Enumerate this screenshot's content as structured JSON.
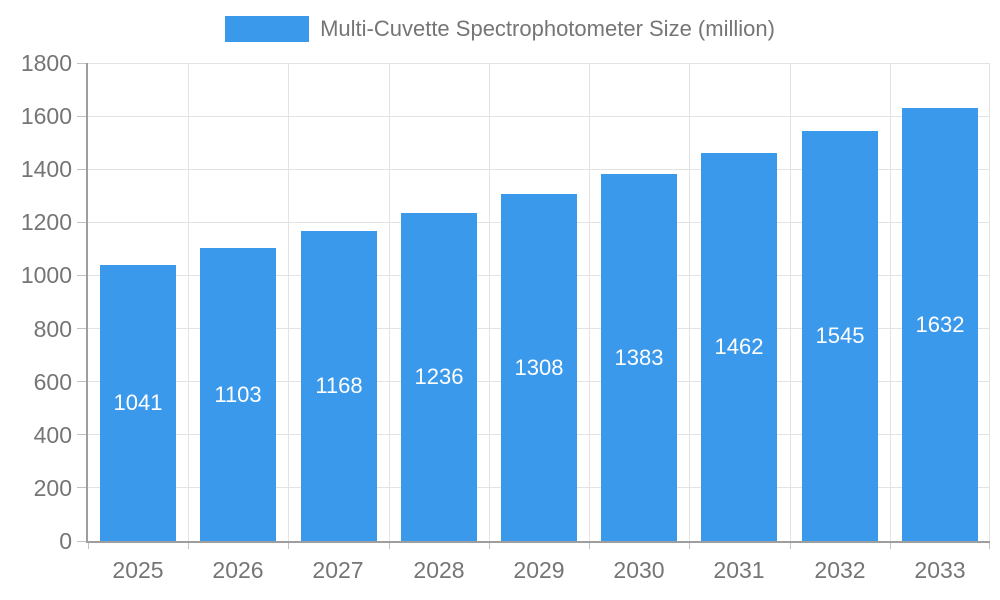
{
  "legend": {
    "label": "Multi-Cuvette Spectrophotometer Size (million)"
  },
  "chart_data": {
    "type": "bar",
    "title": "Multi-Cuvette Spectrophotometer Size (million)",
    "categories": [
      "2025",
      "2026",
      "2027",
      "2028",
      "2029",
      "2030",
      "2031",
      "2032",
      "2033"
    ],
    "values": [
      1041,
      1103,
      1168,
      1236,
      1308,
      1383,
      1462,
      1545,
      1632
    ],
    "xlabel": "",
    "ylabel": "",
    "ylim": [
      0,
      1800
    ],
    "yticks": [
      0,
      200,
      400,
      600,
      800,
      1000,
      1200,
      1400,
      1600,
      1800
    ],
    "grid": true,
    "legend_position": "top",
    "bar_color": "#3B99EC",
    "value_label_color": "#FFFFFF"
  },
  "colors": {
    "background": "#FFFFFF",
    "bar": "#3B99EC",
    "gridline": "#E3E3E3",
    "axis": "#9E9E9E",
    "tick": "#C2C2C2",
    "text": "#757575",
    "value_label": "#FFFFFF"
  }
}
